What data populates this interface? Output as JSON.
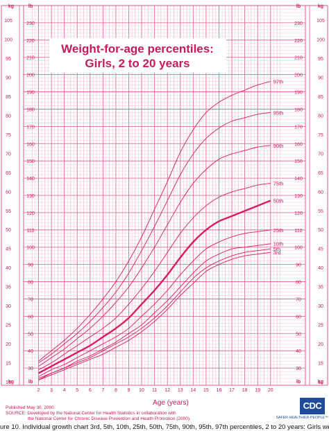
{
  "chart_data": {
    "type": "line",
    "title": "Weight-for-age percentiles:",
    "subtitle": "Girls, 2 to 20 years",
    "xlabel": "Age (years)",
    "ylabel_left": "kg",
    "ylabel_right": "lb",
    "xlim": [
      1.5,
      20.8
    ],
    "ylim_lb": [
      20,
      240
    ],
    "x_ticks": [
      2,
      3,
      4,
      5,
      6,
      7,
      8,
      9,
      10,
      11,
      12,
      13,
      14,
      15,
      16,
      17,
      18,
      19,
      20
    ],
    "lb_ticks": [
      30,
      40,
      50,
      60,
      70,
      80,
      90,
      100,
      110,
      120,
      130,
      140,
      150,
      160,
      170,
      180,
      190,
      200,
      210,
      220,
      230
    ],
    "kg_ticks": [
      10,
      15,
      20,
      25,
      30,
      35,
      40,
      45,
      50,
      55,
      60,
      65,
      70,
      75,
      80,
      85,
      90,
      95,
      100,
      105
    ],
    "grid": true,
    "x": [
      2,
      3,
      4,
      5,
      6,
      7,
      8,
      9,
      10,
      11,
      12,
      13,
      14,
      15,
      16,
      17,
      18,
      19,
      20
    ],
    "series": [
      {
        "name": "97th",
        "values": [
          34,
          40,
          46,
          53,
          61,
          70,
          80,
          92,
          106,
          122,
          138,
          155,
          168,
          178,
          184,
          188,
          191,
          194,
          196
        ]
      },
      {
        "name": "95th",
        "values": [
          33,
          38,
          44,
          50,
          57,
          65,
          74,
          85,
          98,
          112,
          127,
          142,
          154,
          163,
          169,
          173,
          175,
          177,
          178
        ]
      },
      {
        "name": "90th",
        "values": [
          31,
          36,
          41,
          47,
          53,
          60,
          68,
          77,
          88,
          100,
          113,
          126,
          137,
          145,
          151,
          154,
          156,
          158,
          159
        ]
      },
      {
        "name": "75th",
        "values": [
          29,
          33,
          38,
          43,
          48,
          53,
          59,
          67,
          76,
          86,
          97,
          108,
          117,
          124,
          129,
          132,
          134,
          136,
          137
        ]
      },
      {
        "name": "50th",
        "values": [
          27,
          31,
          35,
          39,
          43,
          48,
          53,
          59,
          67,
          75,
          84,
          94,
          103,
          110,
          115,
          118,
          121,
          124,
          127
        ]
      },
      {
        "name": "25th",
        "values": [
          25,
          29,
          32,
          36,
          40,
          44,
          48,
          53,
          60,
          67,
          75,
          84,
          92,
          99,
          103,
          106,
          108,
          109,
          110
        ]
      },
      {
        "name": "10th",
        "values": [
          24,
          27,
          30,
          34,
          37,
          41,
          45,
          50,
          55,
          62,
          69,
          77,
          85,
          92,
          96,
          99,
          100,
          101,
          102
        ]
      },
      {
        "name": "5th",
        "values": [
          23,
          27,
          30,
          33,
          36,
          40,
          44,
          48,
          53,
          59,
          66,
          74,
          82,
          88,
          92,
          95,
          97,
          98,
          99
        ]
      },
      {
        "name": "3rd",
        "values": [
          23,
          26,
          29,
          32,
          35,
          38,
          42,
          46,
          51,
          57,
          64,
          72,
          79,
          86,
          90,
          93,
          95,
          96,
          97
        ]
      }
    ],
    "emphasized_series": "50th",
    "colors": {
      "line": "#d81b60",
      "grid": "#f0a0bf",
      "grid_major": "#e05a8c",
      "text": "#c8195f",
      "title": "#c8195f",
      "title_box": "#ffffff"
    }
  },
  "notes": {
    "published": "Published May 30, 2000.",
    "source_line1": "SOURCE: Developed by the National Center for Health Statistics in collaboration with",
    "source_line2": "the National Center for Chronic Disease Prevention and Health Promotion (2000)."
  },
  "logo": {
    "text": "CDC",
    "tagline": "SAFER·HEALTHIER·PEOPLE™",
    "color": "#1e4c9a"
  },
  "caption": "ure 10. Individual growth chart 3rd, 5th, 10th, 25th, 50th, 75th, 90th, 95th, 97th percentiles, 2 to 20 years: Girls weight-for-age"
}
